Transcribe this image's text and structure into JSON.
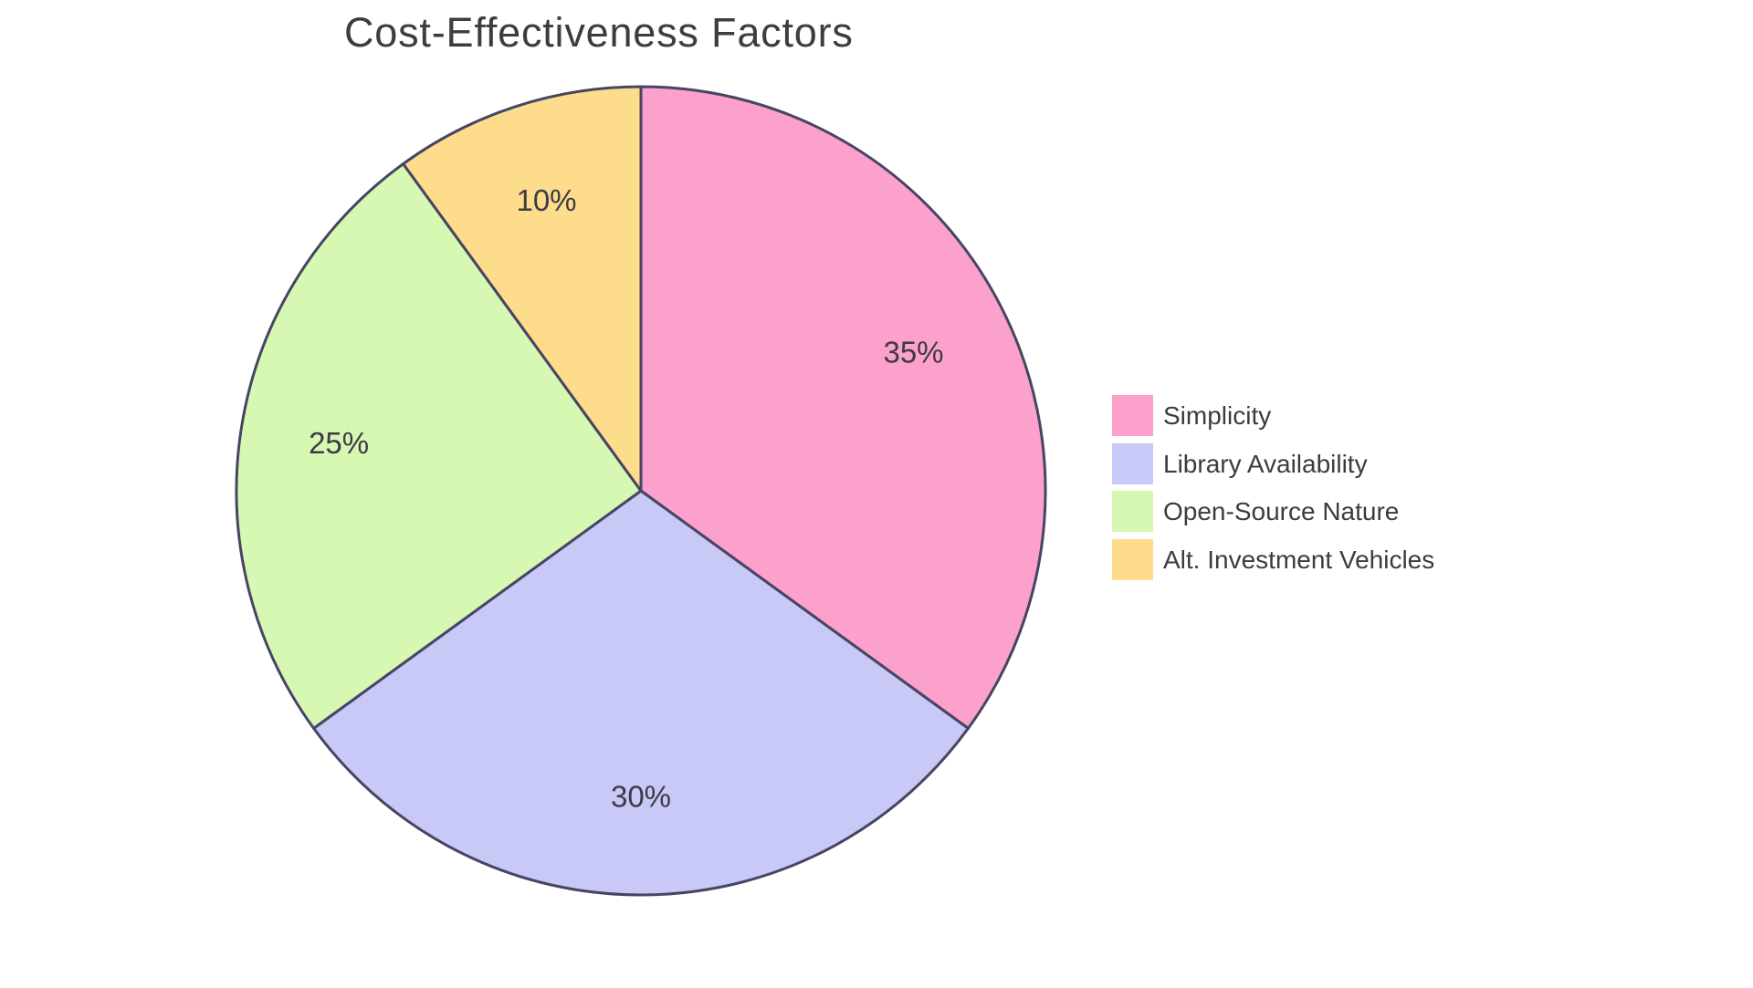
{
  "title": "Cost-Effectiveness Factors",
  "chart_data": {
    "type": "pie",
    "title": "Cost-Effectiveness Factors",
    "categories": [
      "Simplicity",
      "Library Availability",
      "Open-Source Nature",
      "Alt. Investment Vehicles"
    ],
    "values": [
      35,
      30,
      25,
      10
    ],
    "slice_labels": [
      "35%",
      "30%",
      "25%",
      "10%"
    ],
    "colors": [
      "#FCA1CC",
      "#C9C9F7",
      "#D7F8B2",
      "#FDDC8C"
    ],
    "stroke_color": "#474563",
    "title_color": "#3D3D3D",
    "label_color": "#3B3B44",
    "start_angle_deg": 0,
    "direction": "clockwise",
    "legend_position": "right",
    "grid": false
  },
  "legend": {
    "items": [
      {
        "label": "Simplicity",
        "color": "#FCA1CC"
      },
      {
        "label": "Library Availability",
        "color": "#C9C9F7"
      },
      {
        "label": "Open-Source Nature",
        "color": "#D7F8B2"
      },
      {
        "label": "Alt. Investment Vehicles",
        "color": "#FDDC8C"
      }
    ]
  }
}
